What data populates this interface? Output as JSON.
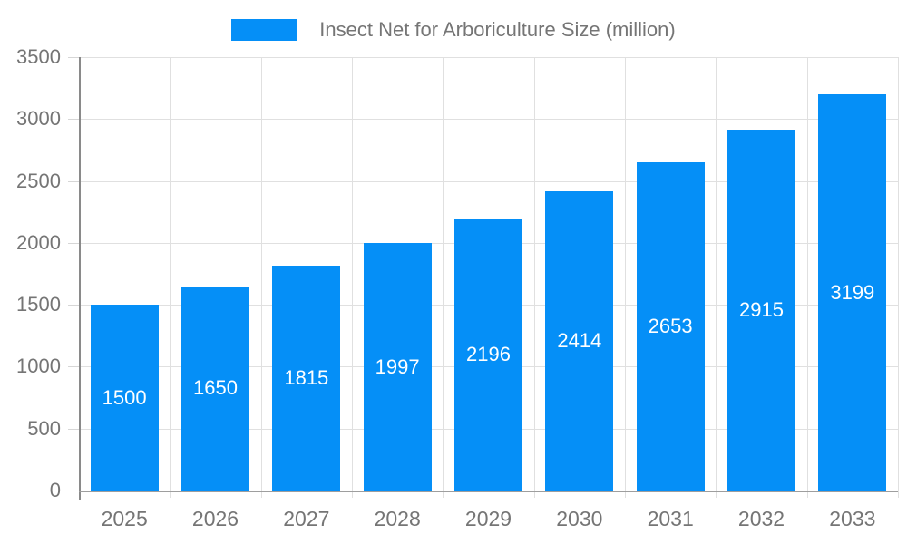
{
  "legend": {
    "label": "Insect Net for Arboriculture Size (million)"
  },
  "chart_data": {
    "type": "bar",
    "title": "Insect Net for Arboriculture Size (million)",
    "categories": [
      "2025",
      "2026",
      "2027",
      "2028",
      "2029",
      "2030",
      "2031",
      "2032",
      "2033"
    ],
    "values": [
      1500,
      1650,
      1815,
      1997,
      2196,
      2414,
      2653,
      2915,
      3199
    ],
    "xlabel": "",
    "ylabel": "",
    "ylim": [
      0,
      3500
    ],
    "yticks": [
      0,
      500,
      1000,
      1500,
      2000,
      2500,
      3000,
      3500
    ],
    "grid": true,
    "legend_position": "top",
    "value_labels": "inside-center"
  },
  "colors": {
    "bar": "#058FF7",
    "bar_value_text": "#ffffff",
    "axis_text": "#757575",
    "gridline": "#e0e0e0",
    "axis_line_y": "#8a8a8a",
    "axis_line_x": "#9e9e9e",
    "background": "#ffffff"
  }
}
